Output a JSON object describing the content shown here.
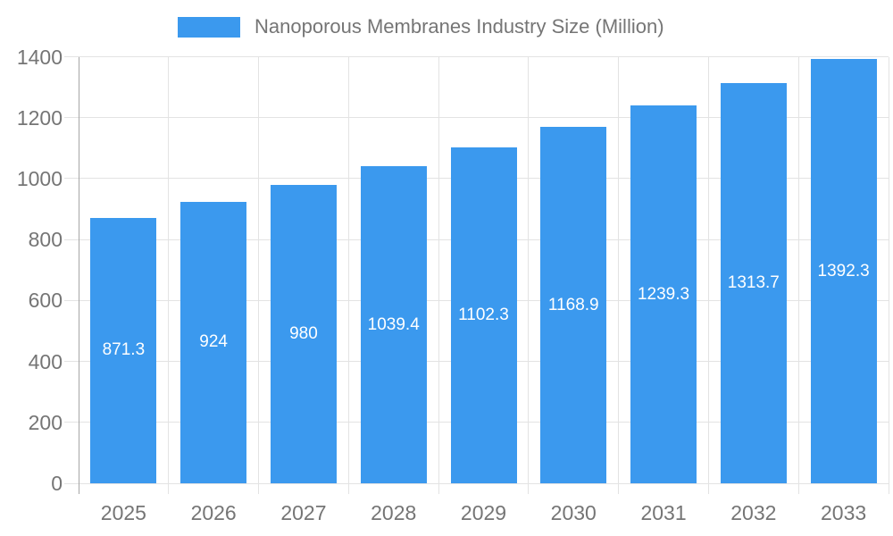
{
  "chart_data": {
    "type": "bar",
    "title": "Nanoporous Membranes Industry Size (Million)",
    "legend": {
      "position": "top",
      "label": "Nanoporous Membranes Industry Size (Million)"
    },
    "categories": [
      "2025",
      "2026",
      "2027",
      "2028",
      "2029",
      "2030",
      "2031",
      "2032",
      "2033"
    ],
    "values": [
      871.3,
      924,
      980,
      1039.4,
      1102.3,
      1168.9,
      1239.3,
      1313.7,
      1392.3
    ],
    "value_labels": [
      "871.3",
      "924",
      "980",
      "1039.4",
      "1102.3",
      "1168.9",
      "1239.3",
      "1313.7",
      "1392.3"
    ],
    "xlabel": "",
    "ylabel": "",
    "ylim": [
      0,
      1400
    ],
    "yticks": [
      0,
      200,
      400,
      600,
      800,
      1000,
      1200,
      1400
    ],
    "grid": true,
    "colors": {
      "bar": "#3b99ee",
      "value_label": "#ffffff",
      "tick_text": "#757575",
      "gridline": "#e3e3e3",
      "axis_line": "#a6a6a6",
      "background": "#ffffff"
    }
  }
}
